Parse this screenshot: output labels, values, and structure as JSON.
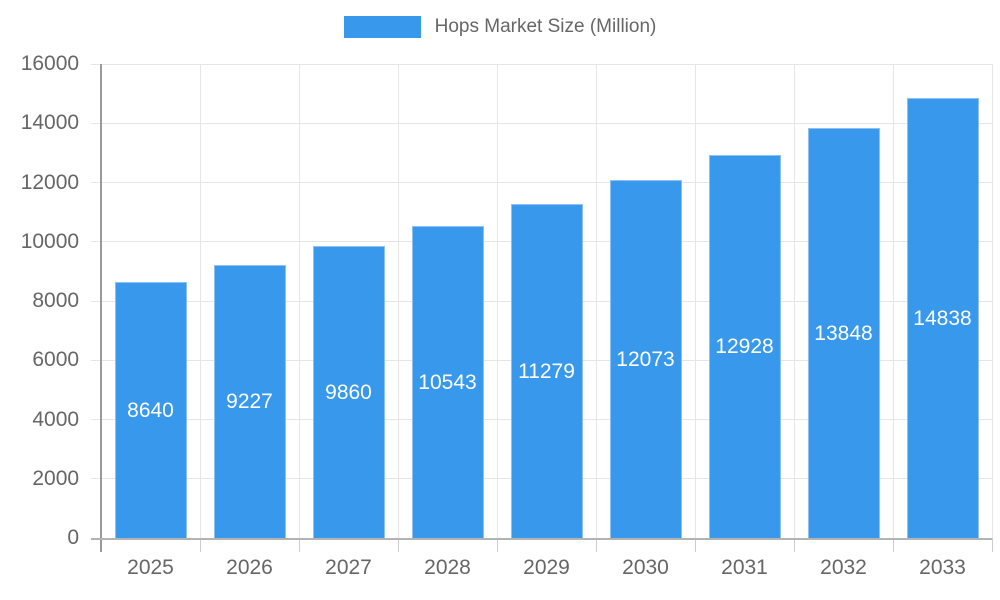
{
  "legend": {
    "label": "Hops Market Size (Million)"
  },
  "colors": {
    "bar_fill": "#3899ec",
    "bar_border": "#8fc0f2",
    "grid": "#e6e6e6",
    "axis_y": "#999999",
    "axis_x": "#b3b3b3",
    "tick": "#cccccc",
    "text": "#666666",
    "bar_label_text": "#ffffff"
  },
  "chart_data": {
    "type": "bar",
    "title": "Hops Market Size (Million)",
    "categories": [
      "2025",
      "2026",
      "2027",
      "2028",
      "2029",
      "2030",
      "2031",
      "2032",
      "2033"
    ],
    "values": [
      8640,
      9227,
      9860,
      10543,
      11279,
      12073,
      12928,
      13848,
      14838
    ],
    "xlabel": "",
    "ylabel": "",
    "ylim": [
      0,
      16000
    ],
    "ytick_step": 2000,
    "ytick_labels": [
      "0",
      "2000",
      "4000",
      "6000",
      "8000",
      "10000",
      "12000",
      "14000",
      "16000"
    ],
    "grid": true,
    "legend_position": "top",
    "value_labels": "inside-center"
  }
}
